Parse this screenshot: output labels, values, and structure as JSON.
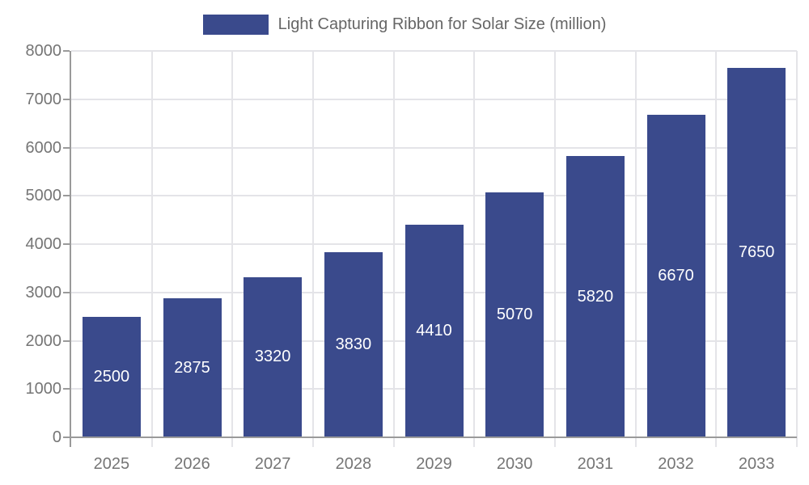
{
  "chart_data": {
    "type": "bar",
    "title": "Light Capturing Ribbon for Solar Size (million)",
    "legend": {
      "position": "top",
      "entries": [
        "Light Capturing Ribbon for Solar Size (million)"
      ]
    },
    "categories": [
      "2025",
      "2026",
      "2027",
      "2028",
      "2029",
      "2030",
      "2031",
      "2032",
      "2033"
    ],
    "series": [
      {
        "name": "Light Capturing Ribbon for Solar Size (million)",
        "values": [
          2500,
          2875,
          3320,
          3830,
          4410,
          5070,
          5820,
          6670,
          7650
        ]
      }
    ],
    "value_labels": [
      "2500",
      "2875",
      "3320",
      "3830",
      "4410",
      "5070",
      "5820",
      "6670",
      "7650"
    ],
    "xlabel": "",
    "ylabel": "",
    "ylim": [
      0,
      8000
    ],
    "yticks": [
      0,
      1000,
      2000,
      3000,
      4000,
      5000,
      6000,
      7000,
      8000
    ],
    "grid": true,
    "colors": {
      "bar": "#3A4A8C",
      "grid": "#E4E4E8",
      "axis": "#9A9A9A",
      "tick_label": "#757575",
      "legend_text": "#666666",
      "value_label": "#FFFFFF",
      "background": "#FFFFFF"
    }
  }
}
